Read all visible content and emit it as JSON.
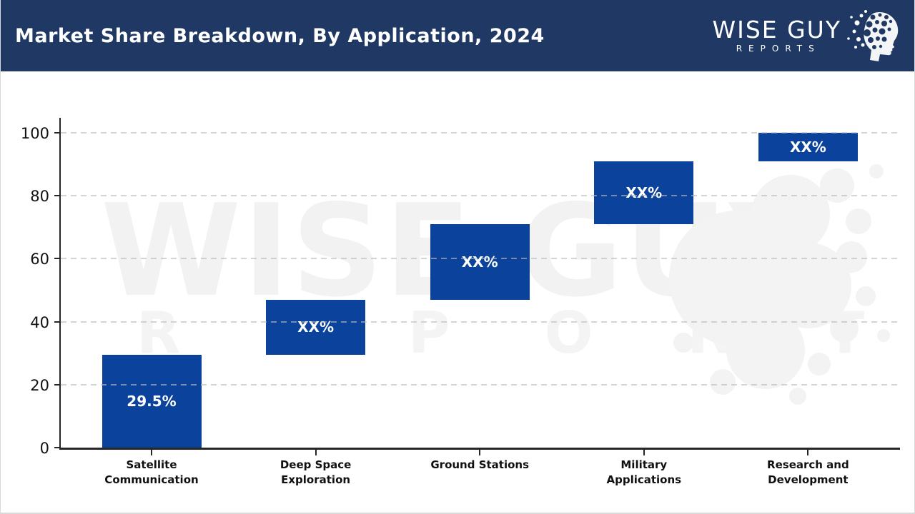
{
  "header": {
    "title": "Market Share Breakdown, By Application, 2024",
    "bg_color": "#1f3864",
    "logo": {
      "line1": "WISE GUY",
      "line2": "REPORTS"
    }
  },
  "watermark": {
    "line1": "WISE GUY",
    "line2": "REPORTS"
  },
  "chart_data": {
    "type": "bar",
    "variant": "waterfall",
    "title": "Market Share Breakdown, By Application, 2024",
    "categories": [
      "Satellite Communication",
      "Deep Space Exploration",
      "Ground Stations",
      "Military Applications",
      "Research and Development"
    ],
    "category_lines": [
      [
        "Satellite",
        "Communication"
      ],
      [
        "Deep Space",
        "Exploration"
      ],
      [
        "Ground Stations"
      ],
      [
        "Military",
        "Applications"
      ],
      [
        "Research and",
        "Development"
      ]
    ],
    "series": [
      {
        "name": "Market Share",
        "segments": [
          {
            "category": "Satellite Communication",
            "start": 0,
            "end": 29.5,
            "label": "29.5%"
          },
          {
            "category": "Deep Space Exploration",
            "start": 29.5,
            "end": 47,
            "label": "XX%"
          },
          {
            "category": "Ground Stations",
            "start": 47,
            "end": 71,
            "label": "XX%"
          },
          {
            "category": "Military Applications",
            "start": 71,
            "end": 91,
            "label": "XX%"
          },
          {
            "category": "Research and Development",
            "start": 91,
            "end": 100,
            "label": "XX%"
          }
        ]
      }
    ],
    "xlabel": "",
    "ylabel": "",
    "ylim": [
      0,
      100
    ],
    "yticks": [
      0,
      20,
      40,
      60,
      80,
      100
    ],
    "grid": "horizontal-dashed-over-bars",
    "legend": "none",
    "bar_color": "#0a429c",
    "bar_label_color": "#ffffff",
    "axis_color": "#262626",
    "gridline_color": "#c9c9c9"
  }
}
